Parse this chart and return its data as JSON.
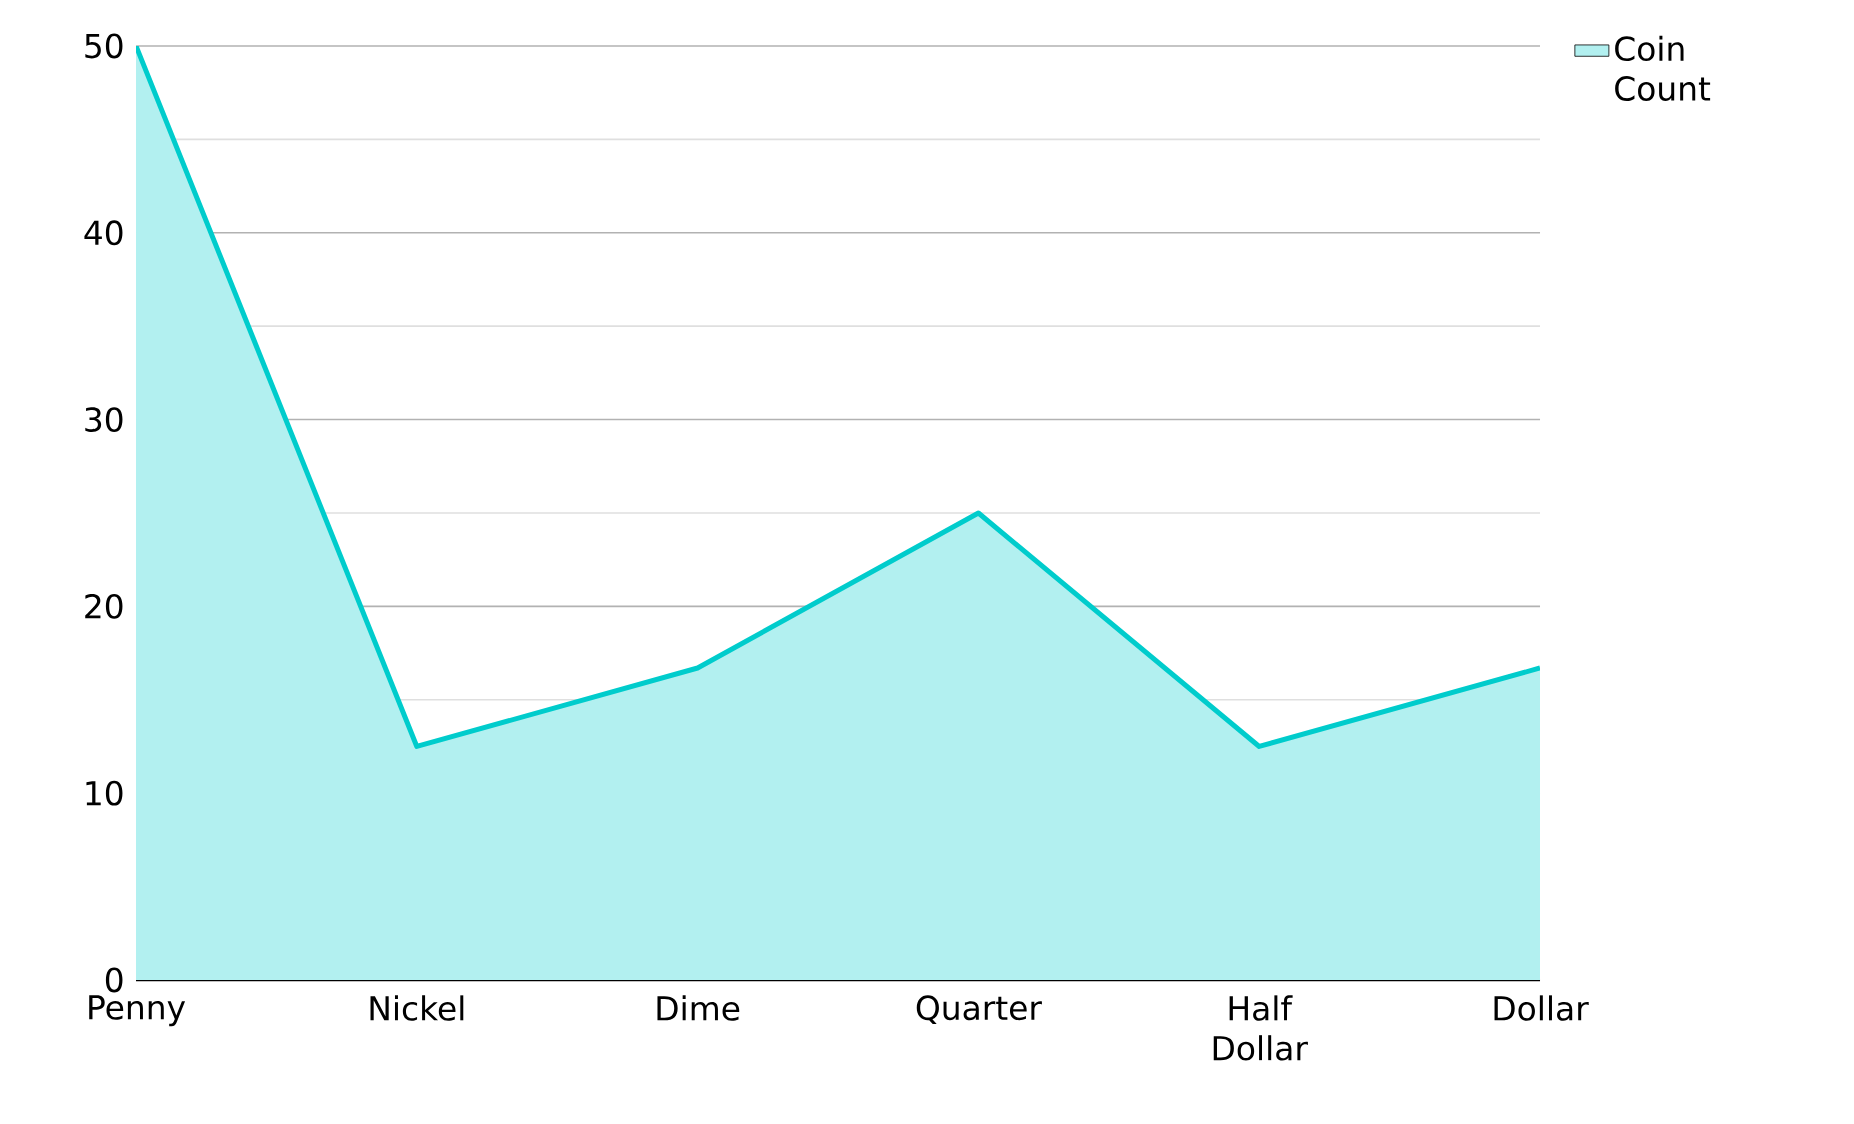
{
  "chart_data": {
    "type": "area",
    "categories": [
      "Penny",
      "Nickel",
      "Dime",
      "Quarter",
      "Half Dollar",
      "Dollar"
    ],
    "series": [
      {
        "name": "Coin Count",
        "color": "#00cccc",
        "values": [
          50,
          12.5,
          16.7,
          25,
          12.5,
          16.7
        ]
      }
    ],
    "ylim": [
      0,
      50
    ],
    "yticks": [
      0,
      10,
      20,
      30,
      40,
      50
    ],
    "grid": "y",
    "legend": "top right"
  }
}
